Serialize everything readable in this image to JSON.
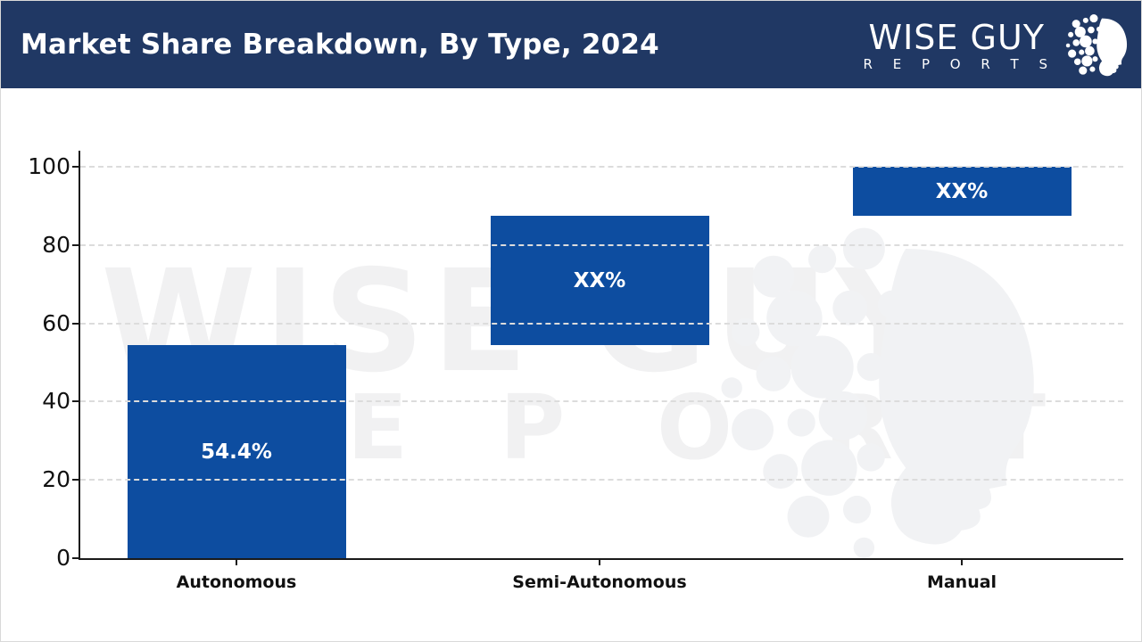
{
  "header": {
    "title": "Market Share Breakdown, By Type, 2024",
    "logo": {
      "name": "WISE GUY",
      "sub": "R E P O R T S"
    }
  },
  "watermark": {
    "line1": "WISE GUY",
    "line2": "R E P O R T S"
  },
  "colors": {
    "header_bg": "#203864",
    "bar": "#0D4DA0",
    "grid": "#DCDCDC",
    "axis": "#1A1A1A",
    "watermark": "#F1F1F2",
    "frame_border": "#D9D9D9",
    "bar_label_text": "#FFFFFF",
    "title_text": "#FFFFFF"
  },
  "chart_data": {
    "type": "bar",
    "subtype": "floating-stacked-percent",
    "title": "Market Share Breakdown, By Type, 2024",
    "categories": [
      "Autonomous",
      "Semi-Autonomous",
      "Manual"
    ],
    "bars": [
      {
        "category": "Autonomous",
        "start": 0,
        "end": 54.4,
        "label": "54.4%"
      },
      {
        "category": "Semi-Autonomous",
        "start": 54.4,
        "end": 87.4,
        "label": "XX%"
      },
      {
        "category": "Manual",
        "start": 87.4,
        "end": 100,
        "label": "XX%"
      }
    ],
    "yticks": [
      0,
      20,
      40,
      60,
      80,
      100
    ],
    "ylim": [
      0,
      104
    ],
    "xlabel": "",
    "ylabel": "",
    "grid": "horizontal-dashed",
    "legend": "none"
  }
}
